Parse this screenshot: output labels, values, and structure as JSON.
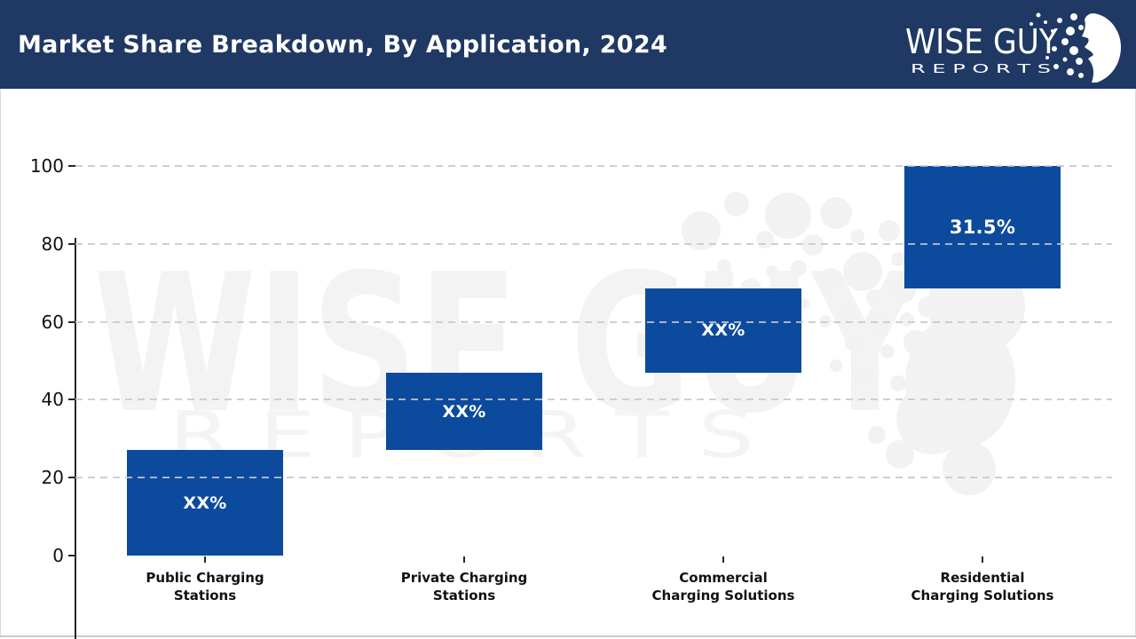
{
  "header": {
    "title": "Market Share Breakdown, By Application, 2024",
    "logo_line1": "WISE GUY",
    "logo_line2": "R E P O R T S"
  },
  "watermark": {
    "line1": "WISE GUY",
    "line2": "R E P O R T S"
  },
  "chart_data": {
    "type": "bar",
    "subtype": "floating-segment-waterfall",
    "title": "Market Share Breakdown, By Application, 2024",
    "categories": [
      "Public Charging Stations",
      "Private Charging Stations",
      "Commercial Charging Solutions",
      "Residential Charging Solutions"
    ],
    "category_label_lines": [
      [
        "Public Charging",
        "Stations"
      ],
      [
        "Private Charging",
        "Stations"
      ],
      [
        "Commercial",
        "Charging Solutions"
      ],
      [
        "Residential",
        "Charging Solutions"
      ]
    ],
    "segments": [
      {
        "category": "Public Charging Stations",
        "start": 0,
        "end": 27,
        "value_label": "XX%"
      },
      {
        "category": "Private Charging Stations",
        "start": 27,
        "end": 47,
        "value_label": "XX%"
      },
      {
        "category": "Commercial Charging Solutions",
        "start": 47,
        "end": 68.5,
        "value_label": "XX%"
      },
      {
        "category": "Residential Charging Solutions",
        "start": 68.5,
        "end": 100,
        "value_label": "31.5%"
      }
    ],
    "xlabel": "",
    "ylabel": "",
    "ylim": [
      0,
      100
    ],
    "yticks": [
      0,
      20,
      40,
      60,
      80,
      100
    ],
    "grid": "horizontal-dashed",
    "legend": "none"
  },
  "colors": {
    "header_bg": "#1f3864",
    "bar_fill": "#0c4a9e",
    "value_label": "#ffffff",
    "grid_line": "#c7c7c7",
    "axis": "#262626",
    "watermark": "#f2f2f2",
    "bottom_rule": "#c9c9c9"
  }
}
